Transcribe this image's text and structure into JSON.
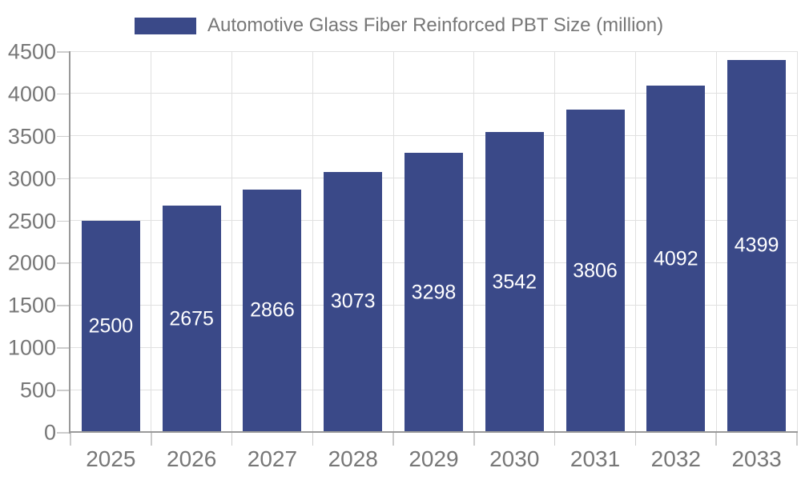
{
  "chart_data": {
    "type": "bar",
    "title": "Automotive Glass Fiber Reinforced PBT Size (million)",
    "categories": [
      "2025",
      "2026",
      "2027",
      "2028",
      "2029",
      "2030",
      "2031",
      "2032",
      "2033"
    ],
    "values": [
      2500,
      2675,
      2866,
      3073,
      3298,
      3542,
      3806,
      4092,
      4399
    ],
    "xlabel": "",
    "ylabel": "",
    "ylim": [
      0,
      4500
    ],
    "yticks": [
      0,
      500,
      1000,
      1500,
      2000,
      2500,
      3000,
      3500,
      4000,
      4500
    ],
    "grid": true,
    "legend_position": "top-center",
    "bar_color": "#3a4988",
    "value_label_color": "#ffffff",
    "grid_color": "#e0e0e0",
    "axis_color": "#999999",
    "tick_color": "#cccccc",
    "tick_label_color": "#777777"
  }
}
